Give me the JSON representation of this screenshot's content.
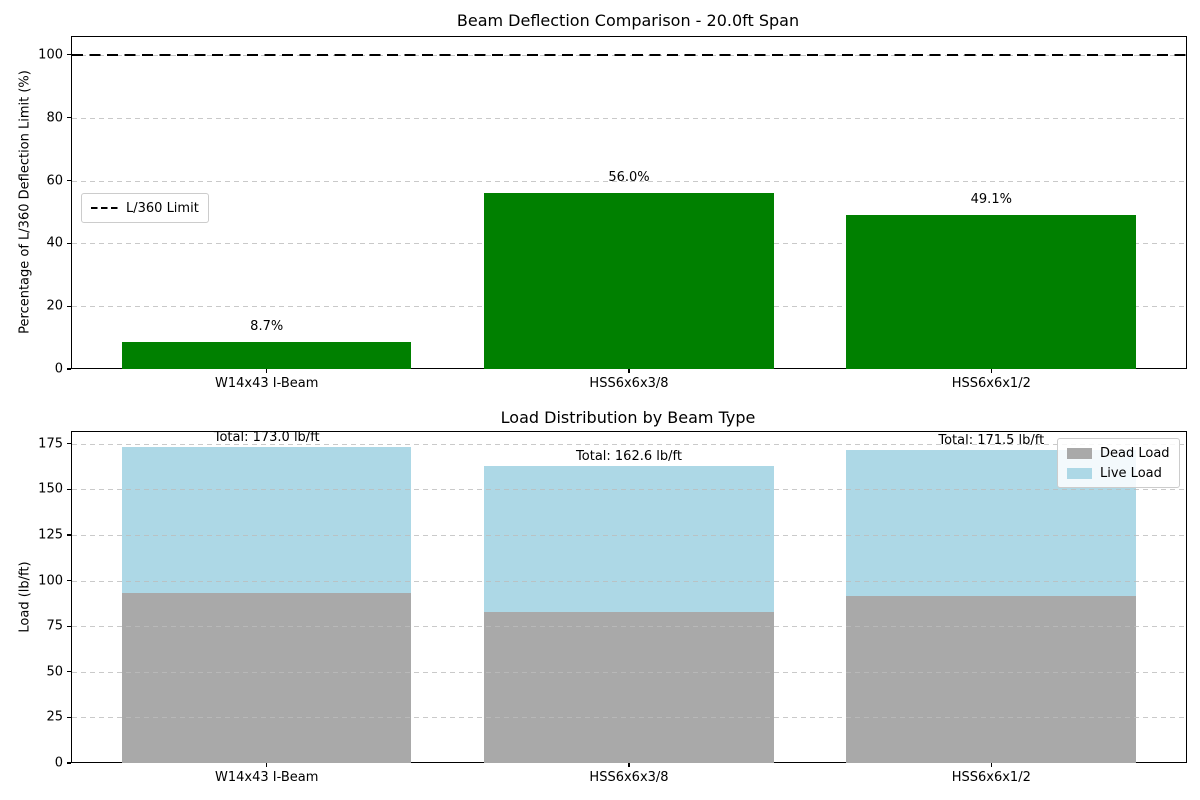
{
  "chart_data": [
    {
      "type": "bar",
      "title": "Beam Deflection Comparison - 20.0ft Span",
      "ylabel": "Percentage of L/360 Deflection Limit (%)",
      "categories": [
        "W14x43 I-Beam",
        "HSS6x6x3/8",
        "HSS6x6x1/2"
      ],
      "values": [
        8.7,
        56.0,
        49.1
      ],
      "bar_labels": [
        "8.7%",
        "56.0%",
        "49.1%"
      ],
      "bar_color": "#008000",
      "yticks": [
        0,
        20,
        40,
        60,
        80,
        100
      ],
      "ylim": [
        0,
        106
      ],
      "grid": true,
      "reference_line": {
        "value": 100,
        "color": "#000000",
        "style": "dashed"
      },
      "legend": {
        "position": "center-left",
        "entries": [
          {
            "label": "L/360 Limit",
            "swatch": "dashed-line",
            "color": "#000000"
          }
        ]
      }
    },
    {
      "type": "stacked-bar",
      "title": "Load Distribution by Beam Type",
      "ylabel": "Load (lb/ft)",
      "categories": [
        "W14x43 I-Beam",
        "HSS6x6x3/8",
        "HSS6x6x1/2"
      ],
      "series": [
        {
          "name": "Dead Load",
          "color": "#a9a9a9",
          "values": [
            93.0,
            82.6,
            91.5
          ]
        },
        {
          "name": "Live Load",
          "color": "#add8e6",
          "values": [
            80.0,
            80.0,
            80.0
          ]
        }
      ],
      "totals": [
        173.0,
        162.6,
        171.5
      ],
      "total_labels": [
        "Total: 173.0 lb/ft",
        "Total: 162.6 lb/ft",
        "Total: 171.5 lb/ft"
      ],
      "yticks": [
        0,
        25,
        50,
        75,
        100,
        125,
        150,
        175
      ],
      "ylim": [
        0,
        182
      ],
      "grid": true,
      "legend": {
        "position": "top-right",
        "entries": [
          {
            "label": "Dead Load",
            "swatch": "patch",
            "color": "#a9a9a9"
          },
          {
            "label": "Live Load",
            "swatch": "patch",
            "color": "#add8e6"
          }
        ]
      }
    }
  ],
  "style_colors": {
    "grid": "#c9c9c9",
    "grid_over_bars": "rgba(188,188,188,0.8)",
    "spine": "#000000",
    "text": "#000000"
  }
}
